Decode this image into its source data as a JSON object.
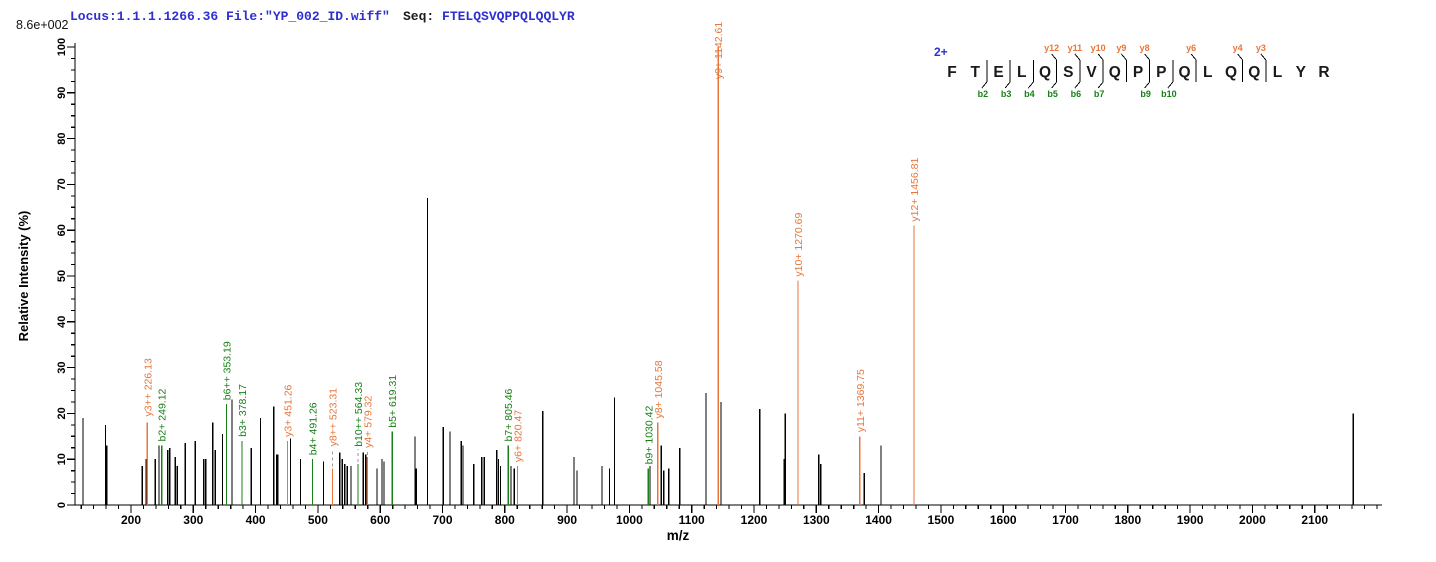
{
  "header": {
    "locus_file": "Locus:1.1.1.1266.36 File:\"YP_002_ID.wiff\"",
    "seq_label": "Seq:",
    "sequence": "FTELQSVQPPQLQQLYR",
    "scale_note": "8.6e+002"
  },
  "colors": {
    "y_ion": "#E8763B",
    "b_ion": "#178117",
    "peak": "#000000",
    "header_blue": "#2f2fd0",
    "leader_gray": "#9a9a9a",
    "axis": "#000000"
  },
  "axes": {
    "x_label": "m/z",
    "y_label": "Relative  Intensity (%)",
    "x_tick_min": 200,
    "x_tick_max": 2100,
    "x_tick_step": 100,
    "x_minor_step": 20,
    "x_range": [
      111,
      2208
    ],
    "y_tick_min": 0,
    "y_tick_max": 100,
    "y_tick_step": 10,
    "y_minor_step": 2.5,
    "y_range": [
      0,
      100
    ]
  },
  "sequence_panel": {
    "charge_label": "2+",
    "residues": "FTELQSVQPPQLQQLYR",
    "y_ions": [
      {
        "label": "y12",
        "gap": 5
      },
      {
        "label": "y11",
        "gap": 6
      },
      {
        "label": "y10",
        "gap": 7
      },
      {
        "label": "y9",
        "gap": 8
      },
      {
        "label": "y8",
        "gap": 9
      },
      {
        "label": "y6",
        "gap": 11
      },
      {
        "label": "y4",
        "gap": 13
      },
      {
        "label": "y3",
        "gap": 14
      }
    ],
    "b_ions": [
      {
        "label": "b2",
        "gap": 2
      },
      {
        "label": "b3",
        "gap": 3
      },
      {
        "label": "b4",
        "gap": 4
      },
      {
        "label": "b5",
        "gap": 5
      },
      {
        "label": "b6",
        "gap": 6
      },
      {
        "label": "b7",
        "gap": 7
      },
      {
        "label": "b9",
        "gap": 9
      },
      {
        "label": "b10",
        "gap": 10
      }
    ]
  },
  "chart_data": {
    "type": "bar",
    "subtype": "ms2-centroid-spectrum",
    "title": "",
    "xlabel": "m/z",
    "ylabel": "Relative  Intensity (%)",
    "xlim": [
      111,
      2208
    ],
    "ylim": [
      0,
      100
    ],
    "grid": false,
    "annotated_peaks": {
      "y_ions": [
        {
          "mz": 226.13,
          "intensity": 18,
          "label": "y3++ 226.13",
          "label_gap": 6
        },
        {
          "mz": 451.26,
          "intensity": 14,
          "label": "y3+ 451.26",
          "label_gap": 4
        },
        {
          "mz": 523.31,
          "intensity": 8,
          "label": "y8++ 523.31",
          "label_gap": 22
        },
        {
          "mz": 579.32,
          "intensity": 10.5,
          "label": "y4+ 579.32",
          "label_gap": 9
        },
        {
          "mz": 820.47,
          "intensity": 8.5,
          "label": "y6+ 820.47",
          "label_gap": 4
        },
        {
          "mz": 1045.58,
          "intensity": 18,
          "label": "y8+ 1045.58",
          "label_gap": 4
        },
        {
          "mz": 1142.61,
          "intensity": 100,
          "label": "y9+ 1142.61",
          "label_gap": 4
        },
        {
          "mz": 1270.69,
          "intensity": 49,
          "label": "y10+ 1270.69",
          "label_gap": 4
        },
        {
          "mz": 1369.75,
          "intensity": 15,
          "label": "y11+ 1369.75",
          "label_gap": 4
        },
        {
          "mz": 1456.81,
          "intensity": 61,
          "label": "y12+ 1456.81",
          "label_gap": 4
        }
      ],
      "b_ions": [
        {
          "mz": 249.12,
          "intensity": 13,
          "label": "b2+ 249.12",
          "label_gap": 4
        },
        {
          "mz": 353.19,
          "intensity": 22,
          "label": "b6++ 353.19",
          "label_gap": 4
        },
        {
          "mz": 378.17,
          "intensity": 14,
          "label": "b3+ 378.17",
          "label_gap": 4
        },
        {
          "mz": 491.26,
          "intensity": 10,
          "label": "b4+ 491.26",
          "label_gap": 4
        },
        {
          "mz": 564.33,
          "intensity": 9,
          "label": "b10++ 564.33",
          "label_gap": 17
        },
        {
          "mz": 619.31,
          "intensity": 16,
          "label": "b5+ 619.31",
          "label_gap": 4
        },
        {
          "mz": 805.46,
          "intensity": 13,
          "label": "b7+ 805.46",
          "label_gap": 4
        },
        {
          "mz": 1030.42,
          "intensity": 8,
          "label": "b9+ 1030.42",
          "label_gap": 4
        }
      ]
    },
    "unassigned_peaks": [
      [
        123,
        19
      ],
      [
        159,
        17.5
      ],
      [
        161,
        13
      ],
      [
        218,
        8.5
      ],
      [
        224,
        10
      ],
      [
        239,
        10
      ],
      [
        245,
        13
      ],
      [
        259,
        12
      ],
      [
        262,
        12.5
      ],
      [
        271,
        10.5
      ],
      [
        274,
        8.5
      ],
      [
        287,
        13.5
      ],
      [
        303,
        14
      ],
      [
        317,
        10
      ],
      [
        320,
        10
      ],
      [
        331,
        18
      ],
      [
        335,
        12
      ],
      [
        347,
        15.5
      ],
      [
        362,
        23
      ],
      [
        393,
        12.5
      ],
      [
        408,
        19
      ],
      [
        429,
        21.5
      ],
      [
        434,
        11
      ],
      [
        436,
        11
      ],
      [
        456,
        14.5
      ],
      [
        472,
        10
      ],
      [
        509,
        9.5
      ],
      [
        535,
        11.5
      ],
      [
        539,
        10
      ],
      [
        543,
        9
      ],
      [
        547,
        8.5
      ],
      [
        553,
        8.5
      ],
      [
        573,
        11.5
      ],
      [
        577,
        11
      ],
      [
        595,
        8
      ],
      [
        603,
        10
      ],
      [
        606,
        9.5
      ],
      [
        656,
        15
      ],
      [
        658,
        8
      ],
      [
        676,
        67
      ],
      [
        701,
        17
      ],
      [
        712,
        16
      ],
      [
        730,
        14
      ],
      [
        733,
        13
      ],
      [
        750,
        9
      ],
      [
        763,
        10.5
      ],
      [
        767,
        10.5
      ],
      [
        787,
        12
      ],
      [
        790,
        10
      ],
      [
        793,
        8.5
      ],
      [
        810,
        8.5
      ],
      [
        815,
        8
      ],
      [
        861,
        20.5
      ],
      [
        911,
        10.5
      ],
      [
        916,
        7.5
      ],
      [
        956,
        8.5
      ],
      [
        968,
        8
      ],
      [
        976,
        23.5
      ],
      [
        1033,
        8.5
      ],
      [
        1051,
        13
      ],
      [
        1055,
        7.5
      ],
      [
        1063,
        8
      ],
      [
        1081,
        12.5
      ],
      [
        1123,
        24.5
      ],
      [
        1147,
        22.5
      ],
      [
        1209,
        21
      ],
      [
        1248,
        10
      ],
      [
        1250,
        20
      ],
      [
        1304,
        11
      ],
      [
        1307,
        9
      ],
      [
        1377,
        7
      ],
      [
        1404,
        13
      ],
      [
        2162,
        20
      ]
    ]
  }
}
